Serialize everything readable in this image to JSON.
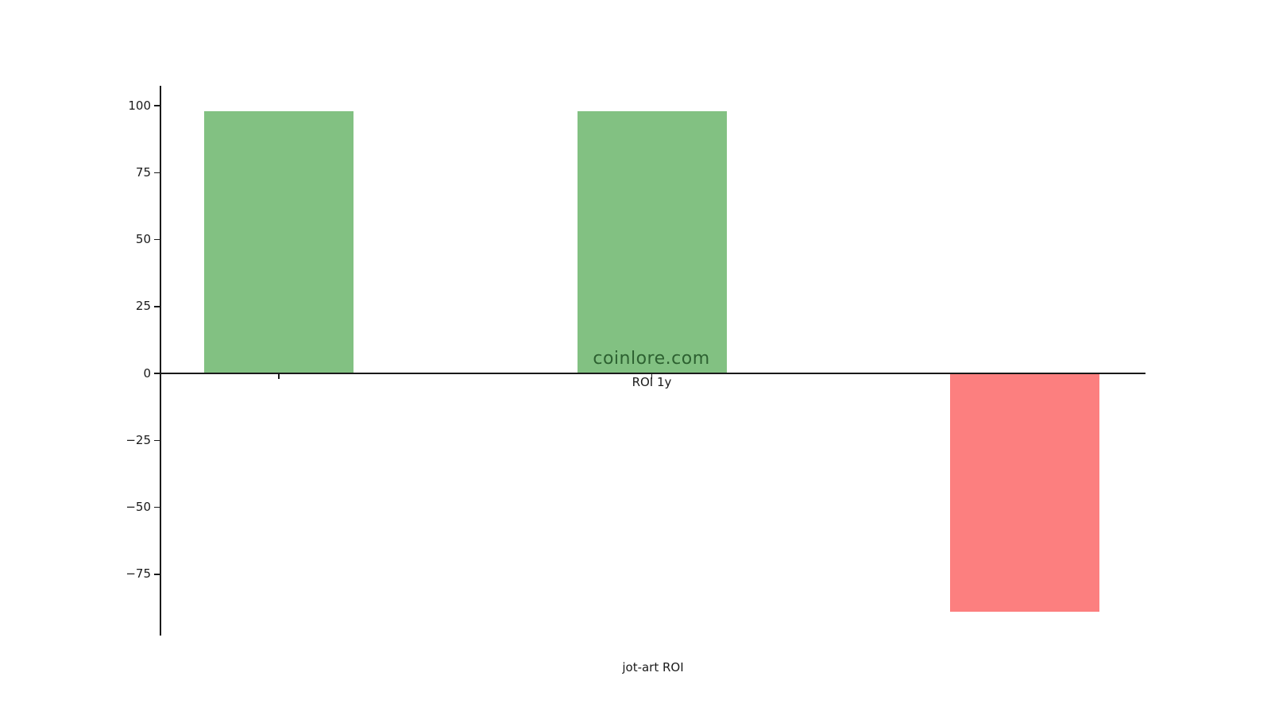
{
  "chart_data": {
    "type": "bar",
    "categories": [
      "",
      "ROI 1y",
      ""
    ],
    "values": [
      98,
      98,
      -89
    ],
    "title": "",
    "xlabel": "jot-art ROI",
    "ylabel": "",
    "ylim": [
      -98,
      107
    ],
    "yticks": [
      100,
      75,
      50,
      25,
      0,
      -25,
      -50,
      -75
    ],
    "ytick_labels": [
      "100",
      "75",
      "50",
      "25",
      "0",
      "−25",
      "−50",
      "−75"
    ],
    "bar_colors": [
      "#82c182",
      "#82c182",
      "#fc7f7f"
    ],
    "positive_color": "#82c182",
    "negative_color": "#fc7f7f",
    "axis_color": "#1a1a1a",
    "grid": false,
    "legend": null,
    "watermark": "coinlore.com",
    "watermark_color": "#2d6131"
  }
}
